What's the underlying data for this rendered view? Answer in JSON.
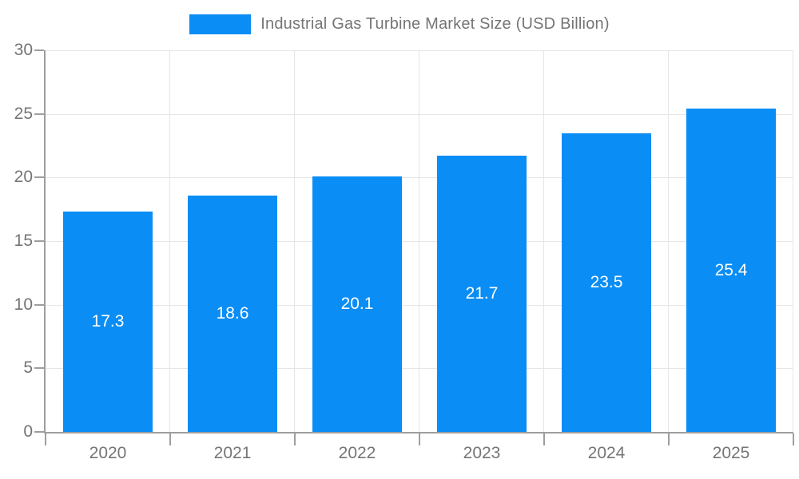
{
  "chart_data": {
    "type": "bar",
    "title": "Industrial Gas Turbine Market Size (USD Billion)",
    "legend_position": "top",
    "categories": [
      "2020",
      "2021",
      "2022",
      "2023",
      "2024",
      "2025"
    ],
    "values": [
      17.3,
      18.6,
      20.1,
      21.7,
      23.5,
      25.4
    ],
    "value_labels": [
      "17.3",
      "18.6",
      "20.1",
      "21.7",
      "23.5",
      "25.4"
    ],
    "series_name": "Industrial Gas Turbine Market Size (USD Billion)",
    "xlabel": "",
    "ylabel": "",
    "ylim": [
      0,
      30
    ],
    "y_ticks": [
      0,
      5,
      10,
      15,
      20,
      25,
      30
    ],
    "grid": "on",
    "colors": {
      "bar": "#0a8df5",
      "value_label": "#ffffff",
      "axis": "#9e9e9e",
      "gridline": "#e6e6e6",
      "tick_text": "#757575",
      "background": "#ffffff"
    }
  }
}
